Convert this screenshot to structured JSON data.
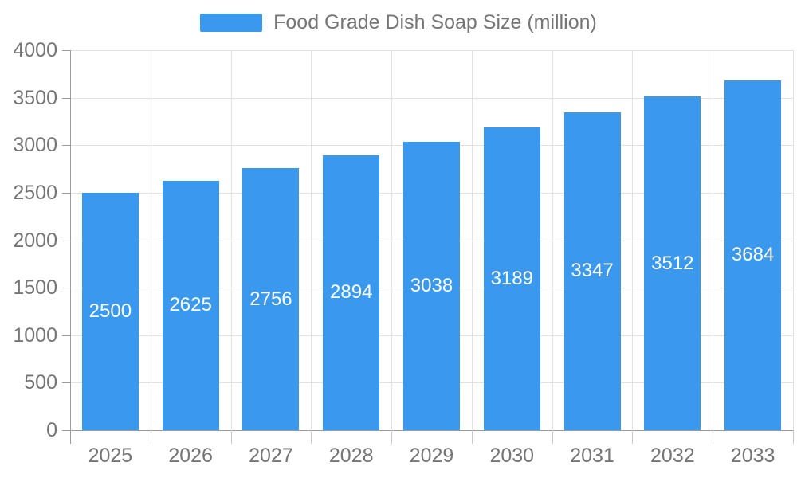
{
  "legend": {
    "label": "Food Grade Dish Soap Size (million)"
  },
  "colors": {
    "bar": "#3A99EC",
    "grid": "#E2E2E2",
    "axis_line": "#9B9B9B",
    "tick_label": "#757575",
    "legend_text": "#757575",
    "value_label": "#FFFFFF",
    "background": "#FFFFFF"
  },
  "chart_data": {
    "type": "bar",
    "title": "Food Grade Dish Soap Size (million)",
    "categories": [
      "2025",
      "2026",
      "2027",
      "2028",
      "2029",
      "2030",
      "2031",
      "2032",
      "2033"
    ],
    "values": [
      2500,
      2625,
      2756,
      2894,
      3038,
      3189,
      3347,
      3512,
      3684
    ],
    "xlabel": "",
    "ylabel": "",
    "ylim": [
      0,
      4000
    ],
    "yticks": [
      0,
      500,
      1000,
      1500,
      2000,
      2500,
      3000,
      3500,
      4000
    ],
    "grid": true,
    "legend_position": "top-center",
    "value_labels": "inside-middle",
    "value_label_color": "#FFFFFF"
  }
}
